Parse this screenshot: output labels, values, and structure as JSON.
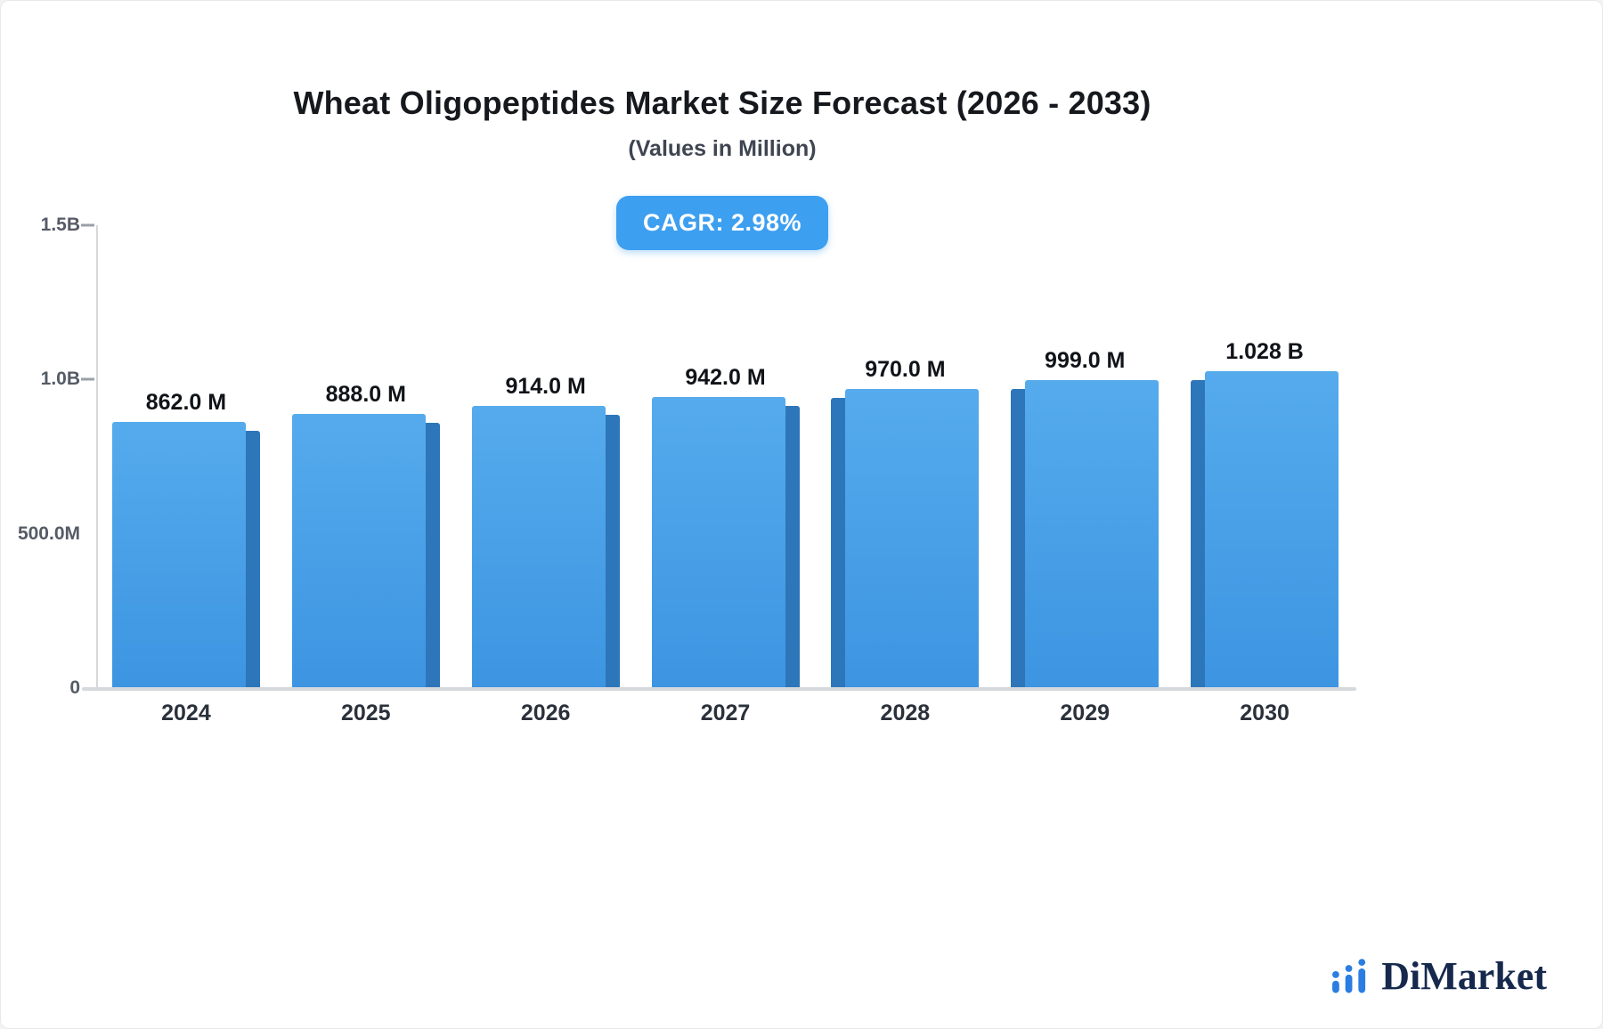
{
  "title": "Wheat Oligopeptides Market Size Forecast (2026 - 2033)",
  "subtitle": "(Values in Million)",
  "cagr_label": "CAGR: 2.98%",
  "logo": {
    "text": "DiMarket"
  },
  "colors": {
    "bar_face_top": "#55abec",
    "bar_face_bottom": "#3d95e2",
    "bar_side": "#2d76b9",
    "badge": "#3d9ff0",
    "axis": "#d5d8dc"
  },
  "chart_data": {
    "type": "bar",
    "title": "Wheat Oligopeptides Market Size Forecast (2026 - 2033)",
    "subtitle": "(Values in Million)",
    "unit": "Million USD",
    "cagr_percent": 2.98,
    "categories": [
      "2024",
      "2025",
      "2026",
      "2027",
      "2028",
      "2029",
      "2030"
    ],
    "values": [
      862,
      888,
      914,
      942,
      970,
      999,
      1028
    ],
    "value_labels": [
      "862.0 M",
      "888.0 M",
      "914.0 M",
      "942.0 M",
      "970.0 M",
      "999.0 M",
      "1.028 B"
    ],
    "ylim": [
      0,
      1500
    ],
    "yticks": [
      {
        "label": "1.5B",
        "value": 1500,
        "tick": true
      },
      {
        "label": "1.0B",
        "value": 1000,
        "tick": true
      },
      {
        "label": "500.0M",
        "value": 500,
        "tick": false
      },
      {
        "label": "0",
        "value": 0,
        "tick": false
      }
    ],
    "grid": false,
    "legend": false
  }
}
